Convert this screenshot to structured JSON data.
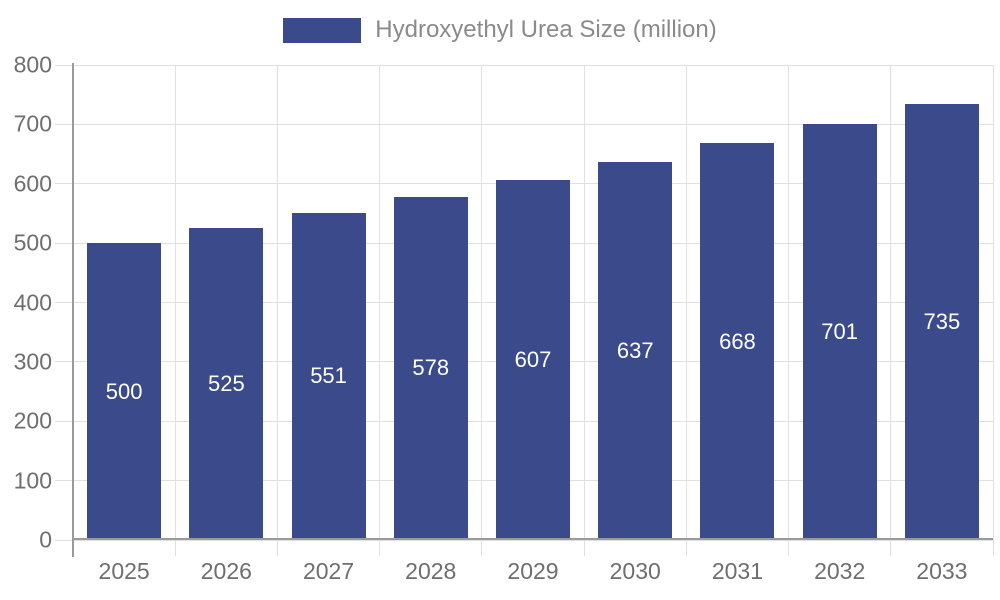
{
  "chart_data": {
    "type": "bar",
    "title": "Hydroxyethyl Urea Size (million)",
    "legend": [
      "Hydroxyethyl Urea Size (million)"
    ],
    "legend_position": "top-center",
    "categories": [
      "2025",
      "2026",
      "2027",
      "2028",
      "2029",
      "2030",
      "2031",
      "2032",
      "2033"
    ],
    "values": [
      500,
      525,
      551,
      578,
      607,
      637,
      668,
      701,
      735
    ],
    "xlabel": "",
    "ylabel": "",
    "ylim": [
      0,
      800
    ],
    "yticks": [
      0,
      100,
      200,
      300,
      400,
      500,
      600,
      700,
      800
    ],
    "grid": true,
    "bar_label_position": "inside-center",
    "colors": {
      "bar": "#3A4A8B",
      "bar_label": "#FFFFFF",
      "legend_text": "#8A8A8A",
      "axis_text": "#6E6E6E",
      "axis_line": "#9A9A9A",
      "gridline": "#E0E0E0",
      "background": "#FFFFFF"
    }
  }
}
